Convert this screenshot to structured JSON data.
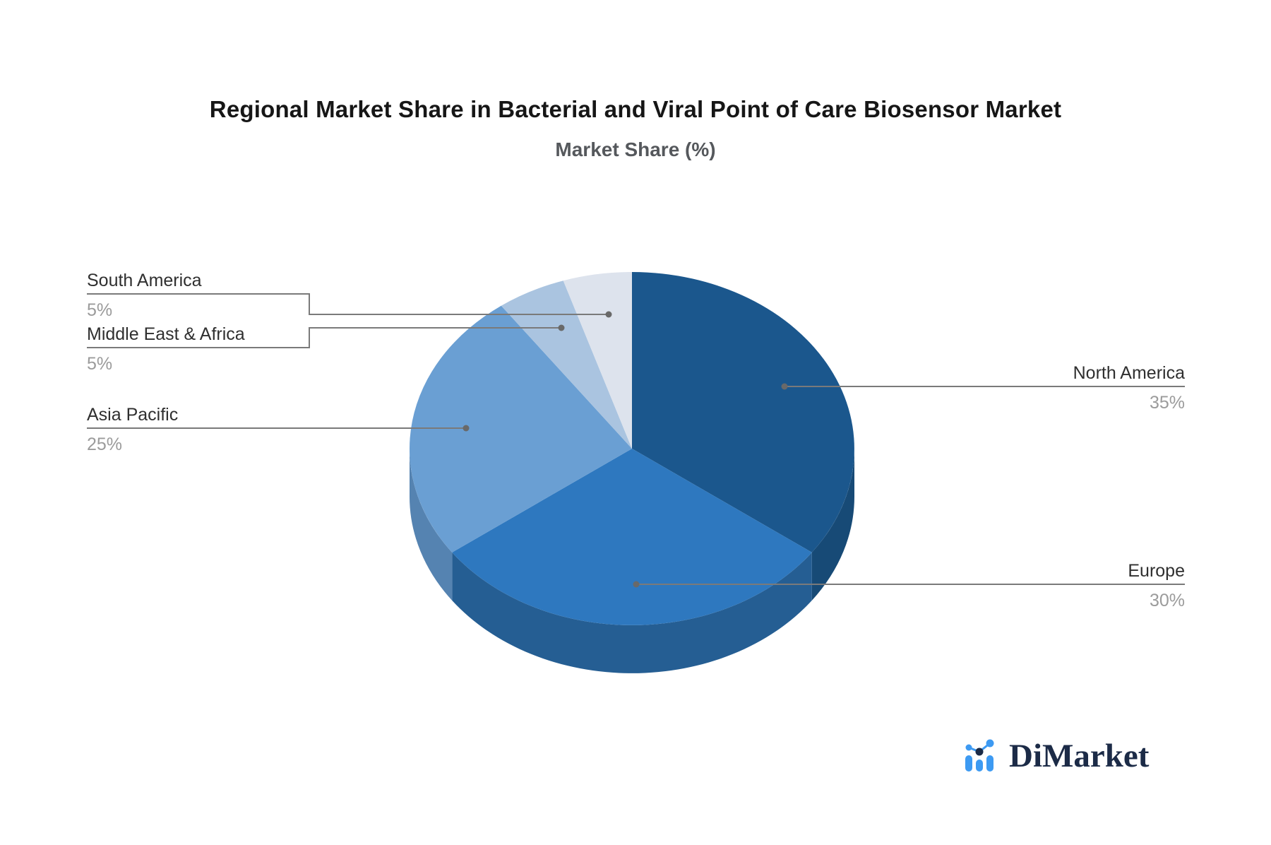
{
  "header": {
    "title": "Regional Market Share in Bacterial and Viral Point of Care Biosensor Market",
    "subtitle": "Market Share (%)"
  },
  "chart_data": {
    "type": "pie",
    "effect": "3d",
    "title": "Regional Market Share in Bacterial and Viral Point of Care Biosensor Market",
    "subtitle": "Market Share (%)",
    "unit": "%",
    "start_angle": "12-oclock",
    "direction": "clockwise",
    "legend_position": "callout-labels",
    "slices": [
      {
        "label": "North America",
        "value": 35,
        "pct_label": "35%",
        "color": "#1b578d",
        "side_color": "#174a76"
      },
      {
        "label": "Europe",
        "value": 30,
        "pct_label": "30%",
        "color": "#2e78bf",
        "side_color": "#255e93"
      },
      {
        "label": "Asia Pacific",
        "value": 25,
        "pct_label": "25%",
        "color": "#6a9fd3",
        "side_color": "#5583b1"
      },
      {
        "label": "Middle East & Africa",
        "value": 5,
        "pct_label": "5%",
        "color": "#aac4e0",
        "side_color": "#8ba6c2"
      },
      {
        "label": "South America",
        "value": 5,
        "pct_label": "5%",
        "color": "#dde3ed",
        "side_color": "#b5bfcc"
      }
    ]
  },
  "colors": {
    "background": "#ffffff",
    "title": "#161616",
    "subtitle": "#55585c",
    "label_text": "#2f2f2f",
    "value_text": "#9b9b9b",
    "callout_line": "#7a7a7a",
    "callout_dot": "#696969",
    "logo_text": "#1c2b47",
    "logo_icon_blue": "#3d9af2"
  },
  "logo": {
    "text": "DiMarket"
  }
}
